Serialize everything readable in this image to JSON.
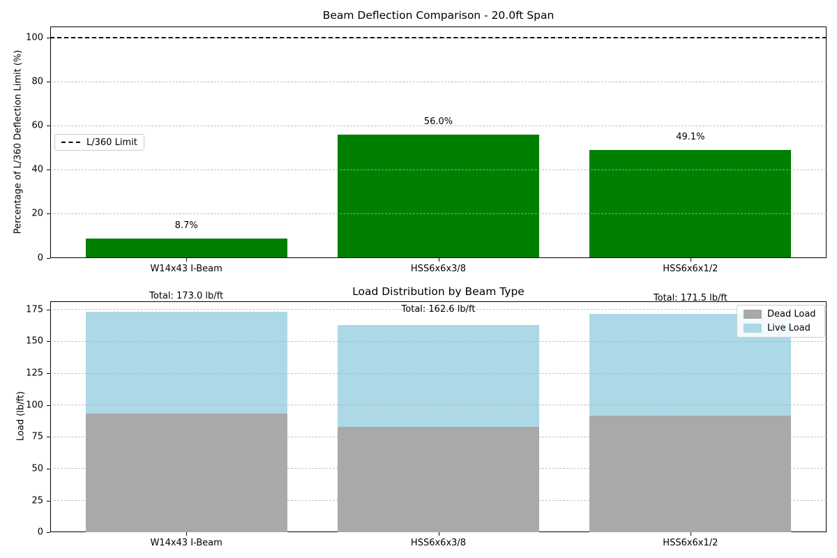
{
  "figure_background": "#ffffff",
  "chart_data": [
    {
      "type": "bar",
      "title": "Beam Deflection Comparison - 20.0ft Span",
      "xlabel": "",
      "ylabel": "Percentage of L/360 Deflection Limit (%)",
      "categories": [
        "W14x43 I-Beam",
        "HSS6x6x3/8",
        "HSS6x6x1/2"
      ],
      "values": [
        8.7,
        56.0,
        49.1
      ],
      "bar_labels": [
        "8.7%",
        "56.0%",
        "49.1%"
      ],
      "bar_color": "#008000",
      "ylim": [
        0,
        105.2
      ],
      "yticks": [
        0,
        20,
        40,
        60,
        80,
        100
      ],
      "grid": true,
      "limit_line": {
        "value": 100,
        "label": "L/360 Limit",
        "color": "#000000",
        "style": "dashed"
      },
      "legend_position": "center-left"
    },
    {
      "type": "stacked-bar",
      "title": "Load Distribution by Beam Type",
      "xlabel": "",
      "ylabel": "Load (lb/ft)",
      "categories": [
        "W14x43 I-Beam",
        "HSS6x6x3/8",
        "HSS6x6x1/2"
      ],
      "series": [
        {
          "name": "Dead Load",
          "color": "#a9a9a9",
          "values": [
            93.0,
            82.6,
            91.5
          ]
        },
        {
          "name": "Live Load",
          "color": "#add8e6",
          "values": [
            80.0,
            80.0,
            80.0
          ]
        }
      ],
      "totals": [
        173.0,
        162.6,
        171.5
      ],
      "total_labels": [
        "Total: 173.0 lb/ft",
        "Total: 162.6 lb/ft",
        "Total: 171.5 lb/ft"
      ],
      "ylim": [
        0,
        181.7
      ],
      "yticks": [
        0,
        25,
        50,
        75,
        100,
        125,
        150,
        175
      ],
      "grid": true,
      "legend_position": "top-right"
    }
  ]
}
